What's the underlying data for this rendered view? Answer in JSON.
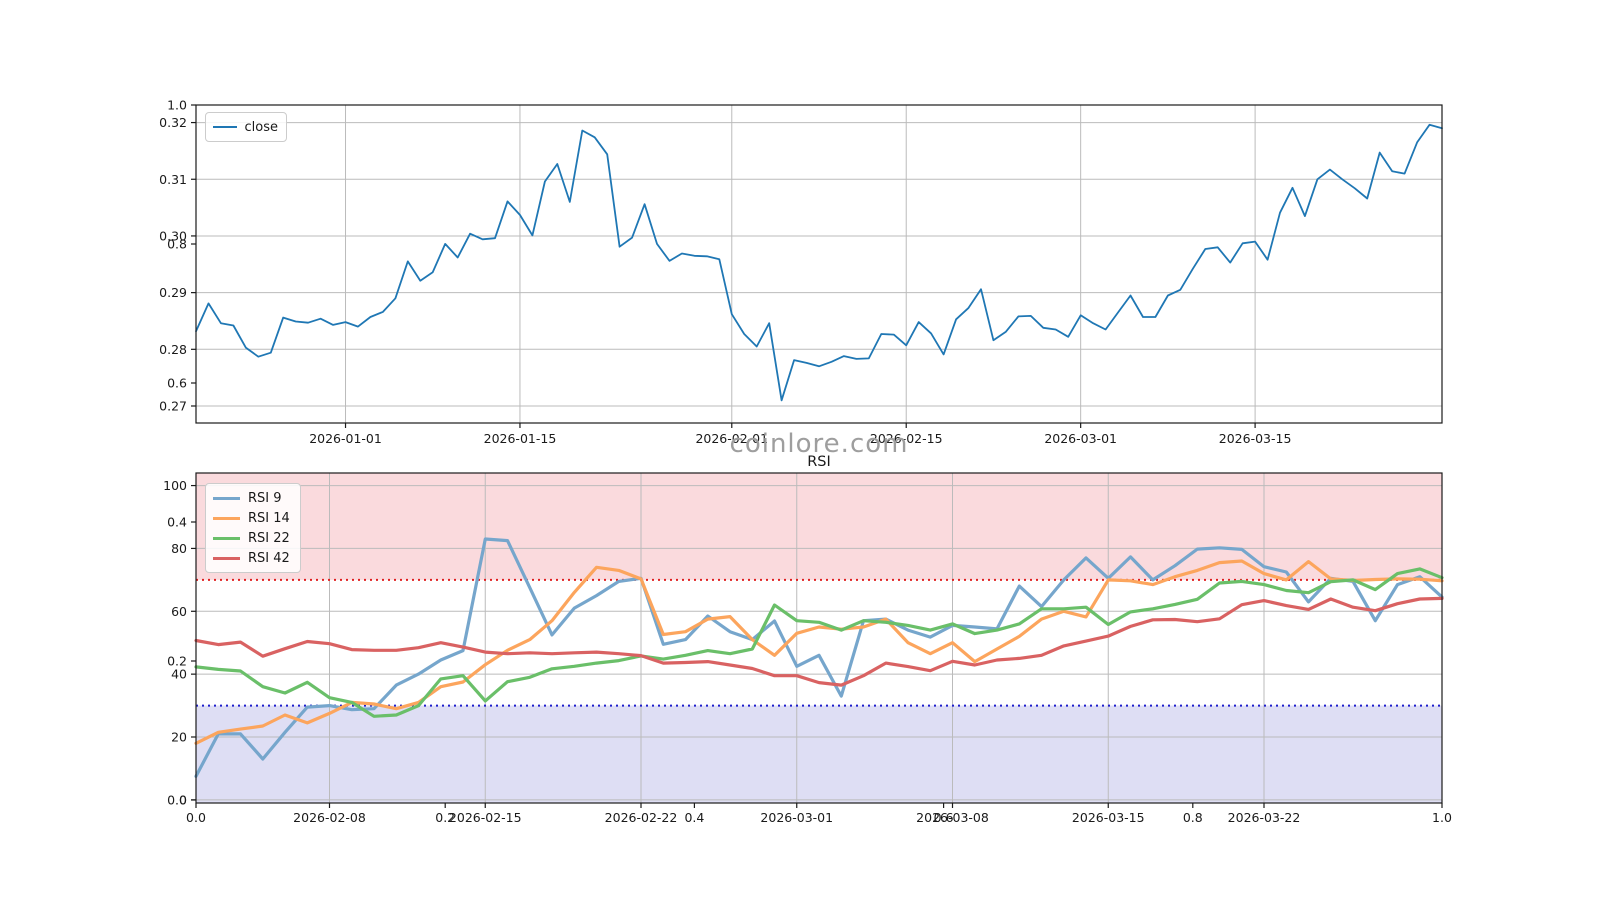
{
  "watermark": {
    "text": "coinlore.com",
    "color": "#9e9e9e"
  },
  "overlay_axis": {
    "xticks": [
      "0.0",
      "0.2",
      "0.4",
      "0.6",
      "0.8",
      "1.0"
    ],
    "yticks": [
      "0.0",
      "0.2",
      "0.4",
      "0.6",
      "0.8",
      "1.0"
    ]
  },
  "style": {
    "grid_color": "#bbbbbb",
    "spine_color": "#1a1a1a",
    "tick_label_color": "#1a1a1a",
    "overbought_band_color": "#fadadd",
    "oversold_band_color": "#dedef4",
    "overbought_line_color": "#e02020",
    "oversold_line_color": "#1e1ecc"
  },
  "chart_data": [
    {
      "type": "line",
      "name": "close-price-chart",
      "title": "",
      "xlabel": "",
      "ylabel": "",
      "legend_position": "upper left",
      "grid": true,
      "legend": [
        {
          "label": "close",
          "color": "#1f77b4"
        }
      ],
      "ylim": [
        0.267,
        0.3231
      ],
      "ytick_labels": [
        "0.27",
        "0.28",
        "0.29",
        "0.30",
        "0.31",
        "0.32"
      ],
      "ytick_values": [
        0.27,
        0.28,
        0.29,
        0.3,
        0.31,
        0.32
      ],
      "xtick_labels": [
        "2026-01-01",
        "2026-01-15",
        "2026-02-01",
        "2026-02-15",
        "2026-03-01",
        "2026-03-15"
      ],
      "xtick_days": [
        12,
        26,
        43,
        57,
        71,
        85
      ],
      "series": [
        {
          "name": "close",
          "color": "#1f77b4",
          "width": 1.8,
          "values": [
            0.2832,
            0.2881,
            0.2846,
            0.2842,
            0.2803,
            0.2787,
            0.2794,
            0.2856,
            0.2849,
            0.2847,
            0.2854,
            0.2843,
            0.2848,
            0.284,
            0.2857,
            0.2866,
            0.289,
            0.2955,
            0.2921,
            0.2936,
            0.2986,
            0.2962,
            0.3004,
            0.2994,
            0.2996,
            0.3061,
            0.3037,
            0.3001,
            0.3096,
            0.3127,
            0.306,
            0.3186,
            0.3174,
            0.3144,
            0.2981,
            0.2997,
            0.3056,
            0.2986,
            0.2956,
            0.2969,
            0.2965,
            0.2964,
            0.2959,
            0.2862,
            0.2827,
            0.2805,
            0.2846,
            0.271,
            0.2781,
            0.2776,
            0.277,
            0.2778,
            0.2788,
            0.2783,
            0.2784,
            0.2827,
            0.2826,
            0.2807,
            0.2848,
            0.2828,
            0.2791,
            0.2853,
            0.2873,
            0.2906,
            0.2816,
            0.2831,
            0.2858,
            0.2859,
            0.2838,
            0.2835,
            0.2822,
            0.286,
            0.2846,
            0.2835,
            0.2865,
            0.2895,
            0.2857,
            0.2857,
            0.2895,
            0.2905,
            0.2942,
            0.2977,
            0.298,
            0.2953,
            0.2987,
            0.299,
            0.2958,
            0.3041,
            0.3085,
            0.3035,
            0.31,
            0.3117,
            0.31,
            0.3084,
            0.3066,
            0.3147,
            0.3114,
            0.311,
            0.3165,
            0.3196,
            0.319
          ]
        }
      ]
    },
    {
      "type": "line",
      "name": "rsi-chart",
      "title": "RSI",
      "xlabel": "",
      "ylabel": "",
      "legend_position": "upper left",
      "grid": true,
      "overbought_level": 70,
      "oversold_level": 30,
      "legend": [
        {
          "label": "RSI 9",
          "color": "#76a6cc"
        },
        {
          "label": "RSI 14",
          "color": "#fca55d"
        },
        {
          "label": "RSI 22",
          "color": "#6abf69"
        },
        {
          "label": "RSI 42",
          "color": "#d96262"
        }
      ],
      "ylim": [
        -1,
        104
      ],
      "ytick_labels": [
        "0",
        "20",
        "40",
        "60",
        "80",
        "100"
      ],
      "ytick_values": [
        0,
        20,
        40,
        60,
        80,
        100
      ],
      "xtick_labels": [
        "2026-02-08",
        "2026-02-15",
        "2026-02-22",
        "2026-03-01",
        "2026-03-08",
        "2026-03-15",
        "2026-03-22"
      ],
      "xtick_days": [
        6,
        13,
        20,
        27,
        34,
        41,
        48
      ],
      "series": [
        {
          "name": "RSI 9",
          "color": "#76a6cc",
          "width": 3.2,
          "values": [
            7.5,
            21,
            21,
            13,
            21.5,
            29.5,
            30,
            28.7,
            29,
            36.5,
            40,
            44.5,
            47.5,
            83,
            82.5,
            67.5,
            52.5,
            61,
            65,
            69.5,
            70.5,
            49.5,
            51,
            58.5,
            53.5,
            51,
            56.9,
            42.5,
            46,
            33,
            57,
            57.5,
            54,
            51.8,
            55.5,
            55,
            54.4,
            68,
            61.5,
            70,
            77,
            70.5,
            77.3,
            70,
            74.5,
            79.8,
            80.2,
            79.7,
            74.2,
            72.5,
            63,
            70.5,
            69.5,
            57,
            68.5,
            71,
            64.5
          ]
        },
        {
          "name": "RSI 14",
          "color": "#fca55d",
          "width": 3.2,
          "values": [
            18,
            21.5,
            22.5,
            23.5,
            27,
            24.5,
            27.5,
            31,
            30.5,
            29,
            31,
            36,
            37.5,
            43,
            47.6,
            51,
            57,
            66,
            74,
            73,
            70.3,
            52.6,
            53.5,
            57.5,
            58.3,
            51,
            46,
            53,
            55,
            54.3,
            55,
            57.5,
            50,
            46.5,
            50,
            44,
            48,
            52,
            57.5,
            60,
            58.2,
            70,
            69.7,
            68.5,
            71,
            73,
            75.5,
            76,
            72,
            70,
            75.8,
            70.3,
            69.8,
            70.1,
            70.3,
            70.2,
            69.7
          ]
        },
        {
          "name": "RSI 22",
          "color": "#6abf69",
          "width": 3.2,
          "values": [
            42.3,
            41.5,
            41,
            36,
            34,
            37.4,
            32.5,
            31,
            26.6,
            27,
            30,
            38.5,
            39.5,
            31.5,
            37.6,
            39,
            41.7,
            42.5,
            43.5,
            44.3,
            45.8,
            44.8,
            46,
            47.5,
            46.5,
            48,
            62,
            57,
            56.5,
            54,
            57,
            56.5,
            55.5,
            54,
            56,
            52.9,
            54,
            56,
            60.8,
            60.8,
            61.3,
            55.8,
            59.8,
            60.8,
            62.2,
            63.8,
            69,
            69.5,
            68.5,
            66.6,
            65.9,
            69.4,
            70,
            66.9,
            72,
            73.5,
            70.7
          ]
        },
        {
          "name": "RSI 42",
          "color": "#d96262",
          "width": 3.2,
          "values": [
            50.7,
            49.4,
            50.2,
            45.7,
            48.1,
            50.4,
            49.7,
            47.8,
            47.6,
            47.6,
            48.4,
            50,
            48.6,
            47,
            46.5,
            46.8,
            46.5,
            46.8,
            47,
            46.5,
            45.9,
            43.5,
            43.7,
            44,
            42.9,
            41.8,
            39.5,
            39.5,
            37.3,
            36.5,
            39.5,
            43.5,
            42.4,
            41.1,
            44.1,
            42.9,
            44.5,
            45,
            46,
            49,
            50.5,
            52.1,
            55.2,
            57.3,
            57.4,
            56.7,
            57.6,
            62.1,
            63.4,
            61.8,
            60.6,
            63.9,
            61.3,
            60.2,
            62.4,
            63.9,
            64.1
          ]
        }
      ]
    }
  ]
}
